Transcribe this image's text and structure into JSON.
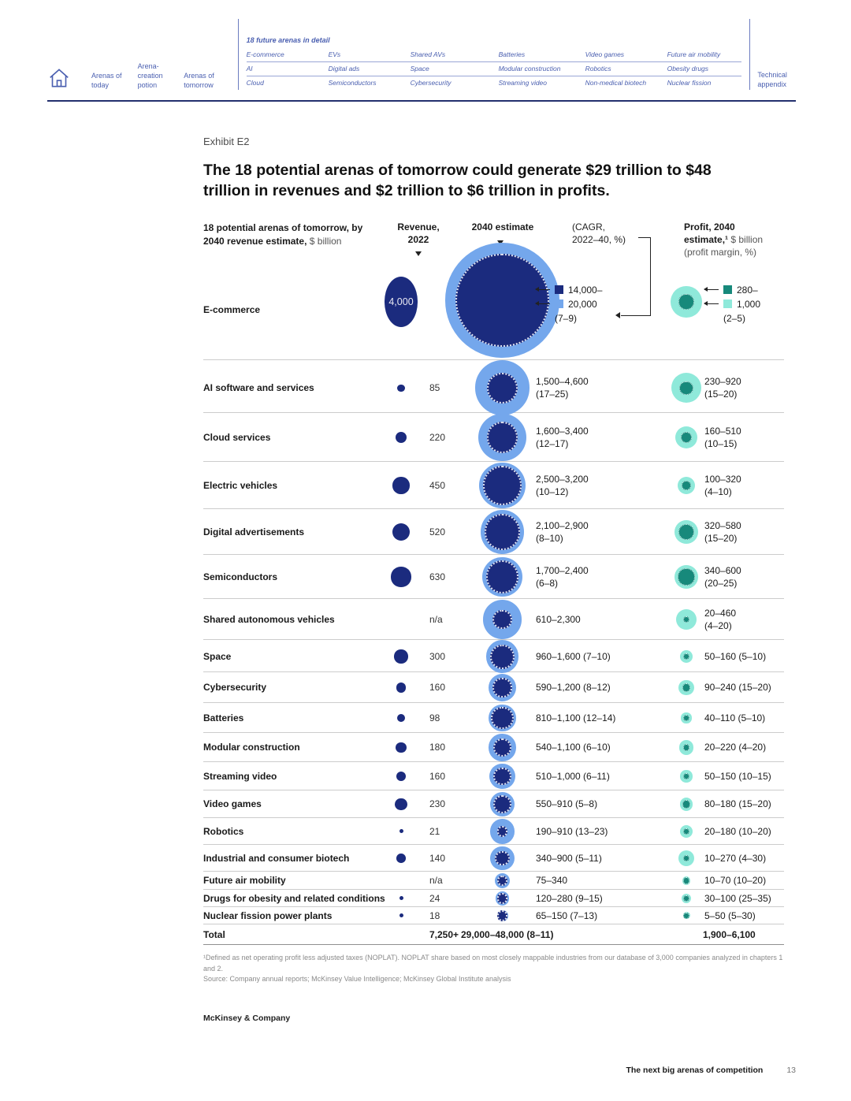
{
  "nav": {
    "items": [
      {
        "label": "Arenas of today"
      },
      {
        "label": "Arena-creation potion"
      },
      {
        "label": "Arenas of tomorrow"
      }
    ],
    "menu_title": "18 future arenas in detail",
    "menu_columns": [
      [
        "E-commerce",
        "AI",
        "Cloud"
      ],
      [
        "EVs",
        "Digital ads",
        "Semiconductors"
      ],
      [
        "Shared AVs",
        "Space",
        "Cybersecurity"
      ],
      [
        "Batteries",
        "Modular construction",
        "Streaming video"
      ],
      [
        "Video games",
        "Robotics",
        "Non-medical biotech"
      ],
      [
        "Future air mobility",
        "Obesity drugs",
        "Nuclear fission"
      ]
    ],
    "appendix": "Technical appendix"
  },
  "exhibit": {
    "eyebrow": "Exhibit E2",
    "title": "The 18 potential arenas of tomorrow could generate $29 trillion to $48 trillion in revenues and $2 trillion to $6 trillion in profits."
  },
  "colors": {
    "navy": "#1b2b7e",
    "light_blue": "#74a7ec",
    "teal": "#17897b",
    "mint": "#8fe9da",
    "nav_blue": "#4a5fb0"
  },
  "chart_data": {
    "type": "bubble-table",
    "title": "18 potential arenas of tomorrow, by 2040 revenue estimate, $ billion",
    "column_headers": {
      "arenas_bold": "18 potential arenas of tomorrow, by 2040 revenue estimate,",
      "arenas_unit": "$ billion",
      "revenue_l1": "Revenue,",
      "revenue_l2": "2022",
      "estimate": "2040 estimate",
      "cagr_l1": "(CAGR,",
      "cagr_l2": "2022–40, %)",
      "profit_l1": "Profit, 2040",
      "profit_l2_bold": "estimate,¹",
      "profit_l2_unit": "$ billion",
      "profit_l3": "(profit margin, %)"
    },
    "legend_note": "arrows link legend values to inner (lower bound) and outer (upper bound) circles",
    "rows": [
      {
        "label": "E-commerce",
        "revenue": "4,000",
        "revenue_value": 4000,
        "est_min": 14000,
        "est_max": 20000,
        "est_display": "14,000–20,000",
        "est_lines": [
          "14,000–",
          "20,000"
        ],
        "cagr": "(7–9)",
        "profit_min": 280,
        "profit_max": 1000,
        "profit_display": "280–1,000",
        "profit_lines": [
          "280–",
          "1,000"
        ],
        "margin": "(2–5)",
        "legend": true,
        "stacked": true
      },
      {
        "label": "AI software and services",
        "revenue": "85",
        "revenue_value": 85,
        "est_min": 1500,
        "est_max": 4600,
        "est_display": "1,500–4,600",
        "cagr": "(17–25)",
        "profit_min": 230,
        "profit_max": 920,
        "profit_display": "230–920",
        "margin": "(15–20)",
        "stacked": true
      },
      {
        "label": "Cloud services",
        "revenue": "220",
        "revenue_value": 220,
        "est_min": 1600,
        "est_max": 3400,
        "est_display": "1,600–3,400",
        "cagr": "(12–17)",
        "profit_min": 160,
        "profit_max": 510,
        "profit_display": "160–510",
        "margin": "(10–15)",
        "stacked": true
      },
      {
        "label": "Electric vehicles",
        "revenue": "450",
        "revenue_value": 450,
        "est_min": 2500,
        "est_max": 3200,
        "est_display": "2,500–3,200",
        "cagr": "(10–12)",
        "profit_min": 100,
        "profit_max": 320,
        "profit_display": "100–320",
        "margin": "(4–10)",
        "stacked": true
      },
      {
        "label": "Digital advertisements",
        "revenue": "520",
        "revenue_value": 520,
        "est_min": 2100,
        "est_max": 2900,
        "est_display": "2,100–2,900",
        "cagr": "(8–10)",
        "profit_min": 320,
        "profit_max": 580,
        "profit_display": "320–580",
        "margin": "(15–20)",
        "stacked": true
      },
      {
        "label": "Semiconductors",
        "revenue": "630",
        "revenue_value": 630,
        "est_min": 1700,
        "est_max": 2400,
        "est_display": "1,700–2,400",
        "cagr": "(6–8)",
        "profit_min": 340,
        "profit_max": 600,
        "profit_display": "340–600",
        "margin": "(20–25)",
        "stacked": true
      },
      {
        "label": "Shared autonomous vehicles",
        "revenue": "n/a",
        "revenue_value": null,
        "est_min": 610,
        "est_max": 2300,
        "est_display": "610–2,300",
        "cagr": "",
        "profit_min": 20,
        "profit_max": 460,
        "profit_display": "20–460",
        "margin": "(4–20)",
        "stacked": true
      },
      {
        "label": "Space",
        "revenue": "300",
        "revenue_value": 300,
        "est_min": 960,
        "est_max": 1600,
        "est_display": "960–1,600",
        "cagr": "(7–10)",
        "profit_min": 50,
        "profit_max": 160,
        "profit_display": "50–160",
        "margin": "(5–10)",
        "stacked": false
      },
      {
        "label": "Cybersecurity",
        "revenue": "160",
        "revenue_value": 160,
        "est_min": 590,
        "est_max": 1200,
        "est_display": "590–1,200",
        "cagr": "(8–12)",
        "profit_min": 90,
        "profit_max": 240,
        "profit_display": "90–240",
        "margin": "(15–20)",
        "stacked": false
      },
      {
        "label": "Batteries",
        "revenue": "98",
        "revenue_value": 98,
        "est_min": 810,
        "est_max": 1100,
        "est_display": "810–1,100",
        "cagr": "(12–14)",
        "profit_min": 40,
        "profit_max": 110,
        "profit_display": "40–110",
        "margin": "(5–10)",
        "stacked": false
      },
      {
        "label": "Modular construction",
        "revenue": "180",
        "revenue_value": 180,
        "est_min": 540,
        "est_max": 1100,
        "est_display": "540–1,100",
        "cagr": "(6–10)",
        "profit_min": 20,
        "profit_max": 220,
        "profit_display": "20–220",
        "margin": "(4–20)",
        "stacked": false
      },
      {
        "label": "Streaming video",
        "revenue": "160",
        "revenue_value": 160,
        "est_min": 510,
        "est_max": 1000,
        "est_display": "510–1,000",
        "cagr": "(6–11)",
        "profit_min": 50,
        "profit_max": 150,
        "profit_display": "50–150",
        "margin": "(10–15)",
        "stacked": false
      },
      {
        "label": "Video games",
        "revenue": "230",
        "revenue_value": 230,
        "est_min": 550,
        "est_max": 910,
        "est_display": "550–910",
        "cagr": "(5–8)",
        "profit_min": 80,
        "profit_max": 180,
        "profit_display": "80–180",
        "margin": "(15–20)",
        "stacked": false
      },
      {
        "label": "Robotics",
        "revenue": "21",
        "revenue_value": 21,
        "est_min": 190,
        "est_max": 910,
        "est_display": "190–910",
        "cagr": "(13–23)",
        "profit_min": 20,
        "profit_max": 180,
        "profit_display": "20–180",
        "margin": "(10–20)",
        "stacked": false
      },
      {
        "label": "Industrial and consumer biotech",
        "revenue": "140",
        "revenue_value": 140,
        "est_min": 340,
        "est_max": 900,
        "est_display": "340–900",
        "cagr": "(5–11)",
        "profit_min": 10,
        "profit_max": 270,
        "profit_display": "10–270",
        "margin": "(4–30)",
        "stacked": false
      },
      {
        "label": "Future air mobility",
        "revenue": "n/a",
        "revenue_value": null,
        "est_min": 75,
        "est_max": 340,
        "est_display": "75–340",
        "cagr": "",
        "profit_min": 10,
        "profit_max": 70,
        "profit_display": "10–70",
        "margin": "(10–20)",
        "stacked": false
      },
      {
        "label": "Drugs for obesity and related conditions",
        "revenue": "24",
        "revenue_value": 24,
        "est_min": 120,
        "est_max": 280,
        "est_display": "120–280",
        "cagr": "(9–15)",
        "profit_min": 30,
        "profit_max": 100,
        "profit_display": "30–100",
        "margin": "(25–35)",
        "stacked": false
      },
      {
        "label": "Nuclear fission power plants",
        "revenue": "18",
        "revenue_value": 18,
        "est_min": 65,
        "est_max": 150,
        "est_display": "65–150",
        "cagr": "(7–13)",
        "profit_min": 5,
        "profit_max": 50,
        "profit_display": "5–50",
        "margin": "(5–30)",
        "stacked": false
      }
    ],
    "total": {
      "label": "Total",
      "revenue": "7,250+",
      "estimate": "29,000–48,000 (8–11)",
      "profit": "1,900–6,100"
    }
  },
  "footnotes": [
    "¹Defined as net operating profit less adjusted taxes (NOPLAT). NOPLAT share based on most closely mappable industries from our database of 3,000 companies analyzed in chapters 1 and 2.",
    "Source: Company annual reports; McKinsey Value Intelligence; McKinsey Global Institute analysis"
  ],
  "brand": "McKinsey & Company",
  "footer": {
    "title": "The next big arenas of competition",
    "page": "13"
  }
}
